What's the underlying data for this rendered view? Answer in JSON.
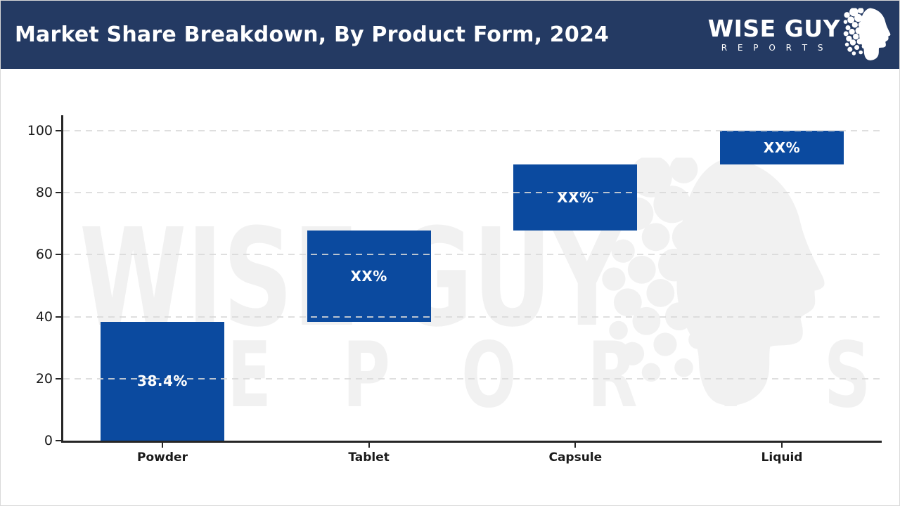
{
  "header": {
    "title": "Market Share Breakdown, By Product Form, 2024",
    "logo": {
      "line1": "WISE GUY",
      "line2": "R E P O R T S"
    }
  },
  "watermark": {
    "line1": "WISE GUY",
    "line2": "R E P O R T S"
  },
  "colors": {
    "header_bg": "#243A63",
    "title_text": "#FFFFFF",
    "bar": "#0B4A9F",
    "bar_label": "#FFFFFF",
    "axis": "#262626",
    "tick_text": "#1A1A1A",
    "grid": "#D9D9D9",
    "watermark": "#F1F1F1",
    "logo": "#FFFFFF"
  },
  "chart_data": {
    "type": "waterfall",
    "title": "Market Share Breakdown, By Product Form, 2024",
    "categories": [
      "Powder",
      "Tablet",
      "Capsule",
      "Liquid"
    ],
    "segments": [
      {
        "category": "Powder",
        "start": 0,
        "end": 38.4,
        "label": "38.4%"
      },
      {
        "category": "Tablet",
        "start": 38.4,
        "end": 67.8,
        "label": "XX%"
      },
      {
        "category": "Capsule",
        "start": 67.8,
        "end": 89.1,
        "label": "XX%"
      },
      {
        "category": "Liquid",
        "start": 89.1,
        "end": 100,
        "label": "XX%"
      }
    ],
    "ylabel": "",
    "xlabel": "",
    "ylim": [
      0,
      100
    ],
    "yticks": [
      0,
      20,
      40,
      60,
      80,
      100
    ],
    "grid": "horizontal-dashed",
    "legend": "none"
  }
}
